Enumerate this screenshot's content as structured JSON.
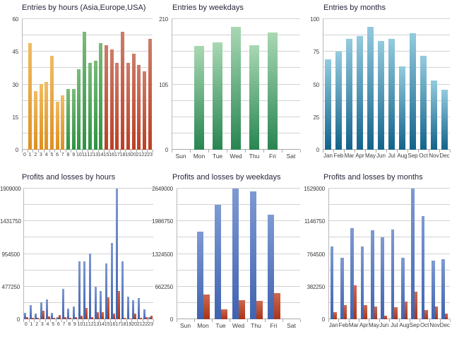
{
  "page": {
    "background": "#ffffff"
  },
  "palette": {
    "hour_orange": {
      "top": "#f1bc62",
      "bottom": "#dd8f1f"
    },
    "hour_green": {
      "top": "#79bb7a",
      "bottom": "#2e9340"
    },
    "hour_red": {
      "top": "#cd7c69",
      "bottom": "#bc3f24"
    },
    "weekday_green": {
      "top": "#a9d8b3",
      "bottom": "#288551"
    },
    "month_blue": {
      "top": "#94cbdf",
      "bottom": "#13638b"
    },
    "profit_blue": {
      "top": "#7e9ad3",
      "bottom": "#3f63b0"
    },
    "loss_red": {
      "top": "#cd6950",
      "bottom": "#aa3418"
    }
  },
  "chart_data": [
    {
      "type": "bar",
      "title": "Entries by hours (Asia,Europe,USA)",
      "xlabel": "",
      "ylabel": "",
      "categories": [
        "0",
        "1",
        "2",
        "3",
        "4",
        "5",
        "6",
        "7",
        "8",
        "9",
        "10",
        "11",
        "12",
        "13",
        "14",
        "15",
        "16",
        "17",
        "18",
        "19",
        "20",
        "21",
        "22",
        "23"
      ],
      "series": [
        {
          "name": "entries",
          "values": [
            0,
            49,
            27,
            30,
            31,
            43,
            22,
            25,
            28,
            28,
            37,
            54,
            40,
            41,
            49,
            48,
            46,
            40,
            54,
            40,
            44,
            39,
            36,
            51
          ]
        }
      ],
      "segment_colors": [
        {
          "range": [
            0,
            7
          ],
          "palette": "hour_orange",
          "label": "Asia"
        },
        {
          "range": [
            8,
            14
          ],
          "palette": "hour_green",
          "label": "Europe"
        },
        {
          "range": [
            15,
            23
          ],
          "palette": "hour_red",
          "label": "USA"
        }
      ],
      "ylim": [
        0,
        60
      ],
      "yticks": [
        0,
        15,
        30,
        45,
        60
      ],
      "grid_divisions": 8,
      "legend": "none"
    },
    {
      "type": "bar",
      "title": "Entries by weekdays",
      "xlabel": "",
      "ylabel": "",
      "categories": [
        "Sun",
        "Mon",
        "Tue",
        "Wed",
        "Thu",
        "Fri",
        "Sat"
      ],
      "series": [
        {
          "name": "entries",
          "palette": "weekday_green",
          "values": [
            0,
            167,
            172,
            198,
            168,
            188,
            0
          ]
        }
      ],
      "ylim": [
        0,
        210
      ],
      "yticks": [
        0,
        105,
        210
      ],
      "grid_divisions": 8,
      "legend": "none"
    },
    {
      "type": "bar",
      "title": "Entries by months",
      "xlabel": "",
      "ylabel": "",
      "categories": [
        "Jan",
        "Feb",
        "Mar",
        "Apr",
        "May",
        "Jun",
        "Jul",
        "Aug",
        "Sep",
        "Oct",
        "Nov",
        "Dec"
      ],
      "series": [
        {
          "name": "entries",
          "palette": "month_blue",
          "values": [
            69,
            75,
            85,
            87,
            94,
            83,
            85,
            64,
            89,
            72,
            53,
            46
          ]
        }
      ],
      "ylim": [
        0,
        100
      ],
      "yticks": [
        0,
        25,
        50,
        75,
        100
      ],
      "grid_divisions": 8,
      "legend": "none"
    },
    {
      "type": "bar",
      "title": "Profits and losses by hours",
      "xlabel": "",
      "ylabel": "",
      "categories": [
        "0",
        "1",
        "2",
        "3",
        "4",
        "5",
        "6",
        "7",
        "8",
        "9",
        "10",
        "11",
        "12",
        "13",
        "14",
        "15",
        "16",
        "17",
        "18",
        "19",
        "20",
        "21",
        "22",
        "23"
      ],
      "series": [
        {
          "name": "profit",
          "palette": "profit_blue",
          "values": [
            95000,
            205000,
            80000,
            245000,
            290000,
            90000,
            35000,
            440000,
            150000,
            190000,
            850000,
            850000,
            954500,
            477250,
            410000,
            820000,
            1110000,
            1909000,
            850000,
            330000,
            275000,
            305000,
            145000,
            35000
          ]
        },
        {
          "name": "loss",
          "palette": "loss_red",
          "values": [
            35000,
            17000,
            17000,
            120000,
            40000,
            20000,
            65000,
            30000,
            17000,
            35000,
            50000,
            170000,
            35000,
            100000,
            100000,
            325000,
            85000,
            410000,
            17000,
            12000,
            85000,
            17000,
            35000,
            50000
          ]
        }
      ],
      "ylim": [
        0,
        1909000
      ],
      "yticks": [
        0,
        477250,
        954500,
        1431750,
        1909000
      ],
      "grid_divisions": 8,
      "legend": "none"
    },
    {
      "type": "bar",
      "title": "Profits and losses by weekdays",
      "xlabel": "",
      "ylabel": "",
      "categories": [
        "Sun",
        "Mon",
        "Tue",
        "Wed",
        "Thu",
        "Fri",
        "Sat"
      ],
      "series": [
        {
          "name": "profit",
          "palette": "profit_blue",
          "values": [
            0,
            1775000,
            2315000,
            2649000,
            2590000,
            2120000,
            0
          ]
        },
        {
          "name": "loss",
          "palette": "loss_red",
          "values": [
            0,
            500000,
            195000,
            390000,
            370000,
            530000,
            0
          ]
        }
      ],
      "ylim": [
        0,
        2649000
      ],
      "yticks": [
        0,
        662250,
        1324500,
        1986750,
        2649000
      ],
      "grid_divisions": 8,
      "legend": "none"
    },
    {
      "type": "bar",
      "title": "Profits and losses by months",
      "xlabel": "",
      "ylabel": "",
      "categories": [
        "Jan",
        "Feb",
        "Mar",
        "Apr",
        "May",
        "Jun",
        "Jul",
        "Aug",
        "Sep",
        "Oct",
        "Nov",
        "Dec"
      ],
      "series": [
        {
          "name": "profit",
          "palette": "profit_blue",
          "values": [
            852000,
            720000,
            1070000,
            852000,
            1040000,
            960000,
            1050000,
            720000,
            1529000,
            1210000,
            685000,
            700000
          ]
        },
        {
          "name": "loss",
          "palette": "loss_red",
          "values": [
            82000,
            164000,
            395000,
            164000,
            150000,
            40000,
            137000,
            205000,
            320000,
            110000,
            150000,
            68000
          ]
        }
      ],
      "ylim": [
        0,
        1529000
      ],
      "yticks": [
        0,
        382250,
        764500,
        1146750,
        1529000
      ],
      "grid_divisions": 8,
      "legend": "none"
    }
  ]
}
